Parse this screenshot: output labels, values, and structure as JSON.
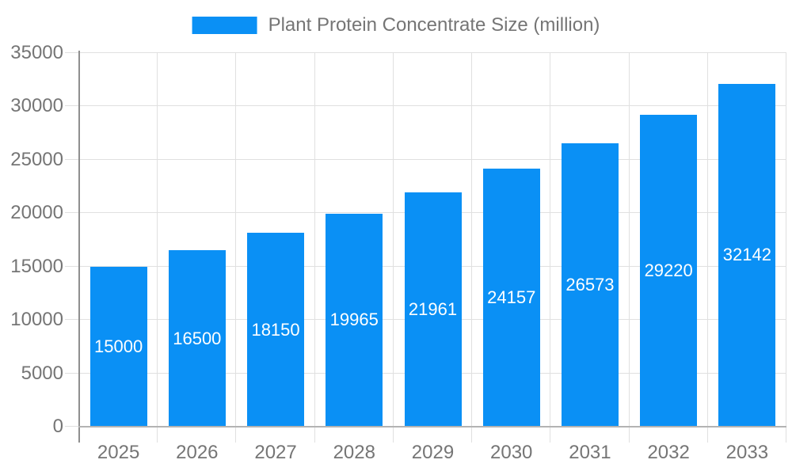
{
  "legend": {
    "label": "Plant Protein Concentrate Size (million)"
  },
  "chart_data": {
    "type": "bar",
    "title": "Plant Protein Concentrate Size (million)",
    "categories": [
      "2025",
      "2026",
      "2027",
      "2028",
      "2029",
      "2030",
      "2031",
      "2032",
      "2033"
    ],
    "series": [
      {
        "name": "Plant Protein Concentrate Size (million)",
        "values": [
          15000,
          16500,
          18150,
          19965,
          21961,
          24157,
          26573,
          29220,
          32142
        ]
      }
    ],
    "bar_value_labels": [
      "15000",
      "16500",
      "18150",
      "19965",
      "21961",
      "24157",
      "26573",
      "29220",
      "32142"
    ],
    "xlabel": "",
    "ylabel": "",
    "ylim": [
      0,
      35000
    ],
    "ytick_step": 5000,
    "ytick_labels": [
      "0",
      "5000",
      "10000",
      "15000",
      "20000",
      "25000",
      "30000",
      "35000"
    ],
    "grid": true,
    "legend_position": "top-center",
    "bar_label_position": "inside-center",
    "colors": {
      "bar": "#0a90f5",
      "bar_label_text": "#ffffff",
      "axis_text": "#757575",
      "gridline": "#e0e0e0",
      "y_axis_line": "#8f8f8f",
      "x_axis_line": "#b3b3b3",
      "background": "#ffffff"
    }
  }
}
